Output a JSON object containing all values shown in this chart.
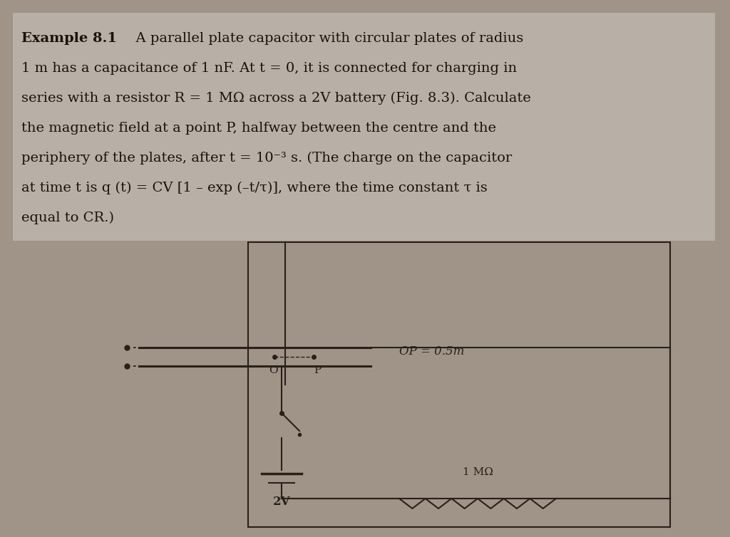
{
  "bg_color": "#a09488",
  "text_bg_color": "#b8afa6",
  "circuit_bg_color": "#9e9590",
  "text_color": "#1a1208",
  "line_color": "#2a2018",
  "body_lines": [
    "Example 8.1  A parallel plate capacitor with circular plates of radius",
    "1 m has a capacitance of 1 nF. At t = 0, it is connected for charging in",
    "series with a resistor R = 1 MΩ across a 2V battery (Fig. 8.3). Calculate",
    "the magnetic field at a point P, halfway between the centre and the",
    "periphery of the plates, after t = 10⁻³ s. (The charge on the capacitor",
    "at time t is q (t) = CV [1 – exp (–t/τ)], where the time constant τ is",
    "equal to CR.)"
  ],
  "plate_label": "OP = 0.5m",
  "resistor_label": "1 MΩ",
  "battery_label": "2V",
  "o_label": "O",
  "p_label": "P"
}
